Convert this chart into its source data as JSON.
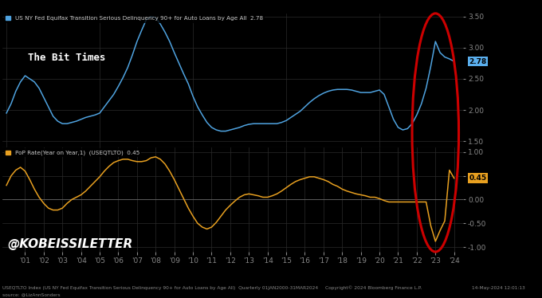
{
  "title": "US NY Fed Equifax Transition Serious Delinquency 90+ for Auto Loans by Age All  2.78",
  "legend1": "US NY Fed Equifax Transition Serious Delinquency 90+ for Auto Loans by Age All  2.78",
  "legend2": "PoP Rate(Year on Year,1)  (USEQTLTO)  0.45",
  "watermark": "The Bit Times",
  "handle": "@KOBEISSILETTER",
  "footer1": "USEQTLTO Index (US NY Fed Equifax Transition Serious Delinquency 90+ for Auto Loans by Age All)  Quarterly 01JAN2000-31MAR2024",
  "footer2": "Copyright© 2024 Bloomberg Finance L.P.",
  "footer3": "14-May-2024 12:01:13",
  "footer4": "source: @LizAnnSonders",
  "bg_color": "#000000",
  "line1_color": "#4fa3e0",
  "line2_color": "#e8a020",
  "label1_bg": "#5aafee",
  "label2_bg": "#e8a020",
  "grid_color": "#2a2a2a",
  "text_color": "#cccccc",
  "axis_color": "#888888",
  "ellipse_color": "#cc0000",
  "blue_x": [
    2000.0,
    2000.25,
    2000.5,
    2000.75,
    2001.0,
    2001.25,
    2001.5,
    2001.75,
    2002.0,
    2002.25,
    2002.5,
    2002.75,
    2003.0,
    2003.25,
    2003.5,
    2003.75,
    2004.0,
    2004.25,
    2004.5,
    2004.75,
    2005.0,
    2005.25,
    2005.5,
    2005.75,
    2006.0,
    2006.25,
    2006.5,
    2006.75,
    2007.0,
    2007.25,
    2007.5,
    2007.75,
    2008.0,
    2008.25,
    2008.5,
    2008.75,
    2009.0,
    2009.25,
    2009.5,
    2009.75,
    2010.0,
    2010.25,
    2010.5,
    2010.75,
    2011.0,
    2011.25,
    2011.5,
    2011.75,
    2012.0,
    2012.25,
    2012.5,
    2012.75,
    2013.0,
    2013.25,
    2013.5,
    2013.75,
    2014.0,
    2014.25,
    2014.5,
    2014.75,
    2015.0,
    2015.25,
    2015.5,
    2015.75,
    2016.0,
    2016.25,
    2016.5,
    2016.75,
    2017.0,
    2017.25,
    2017.5,
    2017.75,
    2018.0,
    2018.25,
    2018.5,
    2018.75,
    2019.0,
    2019.25,
    2019.5,
    2019.75,
    2020.0,
    2020.25,
    2020.5,
    2020.75,
    2021.0,
    2021.25,
    2021.5,
    2021.75,
    2022.0,
    2022.25,
    2022.5,
    2022.75,
    2023.0,
    2023.25,
    2023.5,
    2023.75,
    2024.0
  ],
  "blue_y": [
    1.95,
    2.1,
    2.3,
    2.45,
    2.55,
    2.5,
    2.45,
    2.35,
    2.2,
    2.05,
    1.9,
    1.82,
    1.78,
    1.78,
    1.8,
    1.82,
    1.85,
    1.88,
    1.9,
    1.92,
    1.95,
    2.05,
    2.15,
    2.25,
    2.38,
    2.52,
    2.68,
    2.88,
    3.1,
    3.28,
    3.45,
    3.5,
    3.48,
    3.38,
    3.25,
    3.1,
    2.92,
    2.75,
    2.58,
    2.42,
    2.22,
    2.05,
    1.92,
    1.8,
    1.72,
    1.68,
    1.66,
    1.66,
    1.68,
    1.7,
    1.72,
    1.75,
    1.77,
    1.78,
    1.78,
    1.78,
    1.78,
    1.78,
    1.78,
    1.8,
    1.83,
    1.88,
    1.93,
    1.98,
    2.05,
    2.12,
    2.18,
    2.23,
    2.27,
    2.3,
    2.32,
    2.33,
    2.33,
    2.33,
    2.32,
    2.3,
    2.28,
    2.28,
    2.28,
    2.3,
    2.32,
    2.25,
    2.05,
    1.85,
    1.72,
    1.68,
    1.7,
    1.78,
    1.92,
    2.1,
    2.35,
    2.7,
    3.1,
    2.92,
    2.85,
    2.82,
    2.78
  ],
  "orange_x": [
    2000.0,
    2000.25,
    2000.5,
    2000.75,
    2001.0,
    2001.25,
    2001.5,
    2001.75,
    2002.0,
    2002.25,
    2002.5,
    2002.75,
    2003.0,
    2003.25,
    2003.5,
    2003.75,
    2004.0,
    2004.25,
    2004.5,
    2004.75,
    2005.0,
    2005.25,
    2005.5,
    2005.75,
    2006.0,
    2006.25,
    2006.5,
    2006.75,
    2007.0,
    2007.25,
    2007.5,
    2007.75,
    2008.0,
    2008.25,
    2008.5,
    2008.75,
    2009.0,
    2009.25,
    2009.5,
    2009.75,
    2010.0,
    2010.25,
    2010.5,
    2010.75,
    2011.0,
    2011.25,
    2011.5,
    2011.75,
    2012.0,
    2012.25,
    2012.5,
    2012.75,
    2013.0,
    2013.25,
    2013.5,
    2013.75,
    2014.0,
    2014.25,
    2014.5,
    2014.75,
    2015.0,
    2015.25,
    2015.5,
    2015.75,
    2016.0,
    2016.25,
    2016.5,
    2016.75,
    2017.0,
    2017.25,
    2017.5,
    2017.75,
    2018.0,
    2018.25,
    2018.5,
    2018.75,
    2019.0,
    2019.25,
    2019.5,
    2019.75,
    2020.0,
    2020.25,
    2020.5,
    2020.75,
    2021.0,
    2021.25,
    2021.5,
    2021.75,
    2022.0,
    2022.25,
    2022.5,
    2022.75,
    2023.0,
    2023.25,
    2023.5,
    2023.75,
    2024.0
  ],
  "orange_y": [
    0.3,
    0.5,
    0.62,
    0.68,
    0.6,
    0.42,
    0.22,
    0.05,
    -0.08,
    -0.18,
    -0.22,
    -0.22,
    -0.18,
    -0.08,
    0.0,
    0.05,
    0.1,
    0.18,
    0.28,
    0.38,
    0.48,
    0.6,
    0.7,
    0.78,
    0.82,
    0.85,
    0.85,
    0.82,
    0.8,
    0.8,
    0.82,
    0.88,
    0.9,
    0.85,
    0.75,
    0.6,
    0.42,
    0.22,
    0.02,
    -0.18,
    -0.35,
    -0.5,
    -0.58,
    -0.62,
    -0.58,
    -0.48,
    -0.35,
    -0.22,
    -0.12,
    -0.03,
    0.05,
    0.1,
    0.12,
    0.1,
    0.08,
    0.05,
    0.05,
    0.08,
    0.12,
    0.18,
    0.25,
    0.32,
    0.38,
    0.42,
    0.45,
    0.48,
    0.48,
    0.45,
    0.42,
    0.38,
    0.32,
    0.28,
    0.22,
    0.18,
    0.15,
    0.12,
    0.1,
    0.08,
    0.05,
    0.05,
    0.02,
    -0.02,
    -0.05,
    -0.05,
    -0.05,
    -0.05,
    -0.05,
    -0.05,
    -0.05,
    -0.05,
    -0.05,
    -0.55,
    -0.88,
    -0.65,
    -0.45,
    0.62,
    0.45
  ],
  "ylim1": [
    1.4,
    3.55
  ],
  "ylim2": [
    -1.1,
    1.1
  ],
  "yticks1": [
    1.5,
    2.0,
    2.5,
    3.0,
    3.5
  ],
  "yticks2": [
    -1.0,
    -0.5,
    0.0,
    0.5,
    1.0
  ],
  "xtick_years": [
    2001,
    2002,
    2003,
    2004,
    2005,
    2006,
    2007,
    2008,
    2009,
    2010,
    2011,
    2012,
    2013,
    2014,
    2015,
    2016,
    2017,
    2018,
    2019,
    2020,
    2021,
    2022,
    2023,
    2024
  ],
  "xmin": 1999.8,
  "xmax": 2024.5,
  "ellipse_xcenter": 2023.0,
  "ellipse_xwidth": 2.5,
  "ellipse_yscale": 1.0
}
